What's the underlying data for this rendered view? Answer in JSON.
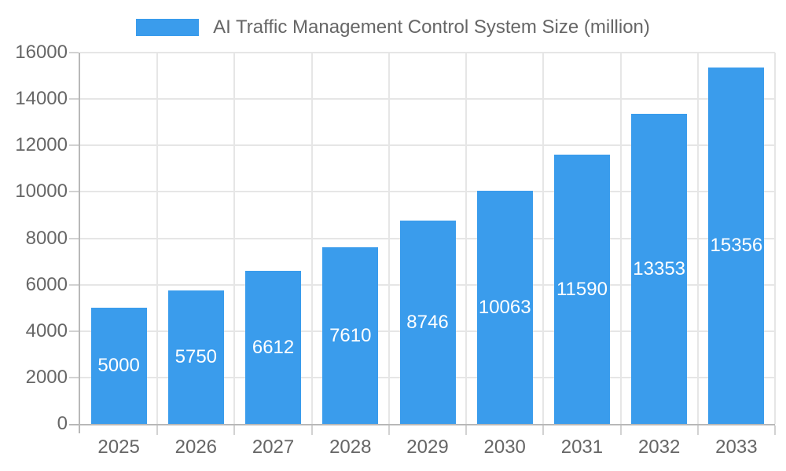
{
  "chart_data": {
    "type": "bar",
    "title": "AI Traffic Management Control System Size (million)",
    "series": [
      {
        "name": "AI Traffic Management Control System Size (million)",
        "values": [
          5000,
          5750,
          6612,
          7610,
          8746,
          10063,
          11590,
          13353,
          15356
        ]
      }
    ],
    "categories": [
      "2025",
      "2026",
      "2027",
      "2028",
      "2029",
      "2030",
      "2031",
      "2032",
      "2033"
    ],
    "yticks": [
      0,
      2000,
      4000,
      6000,
      8000,
      10000,
      12000,
      14000,
      16000
    ],
    "ylim": [
      0,
      16000
    ],
    "xlabel": "",
    "ylabel": "",
    "grid": true,
    "legend_position": "top-center",
    "value_label_position": "inside-center",
    "colors": {
      "bar": "#3A9CEC",
      "grid": "#E6E6E6",
      "axis": "#B8B8B8",
      "tick": "#D2D2D2",
      "text": "#666666",
      "value_label": "#FFFFFF",
      "background": "#FFFFFF"
    }
  }
}
